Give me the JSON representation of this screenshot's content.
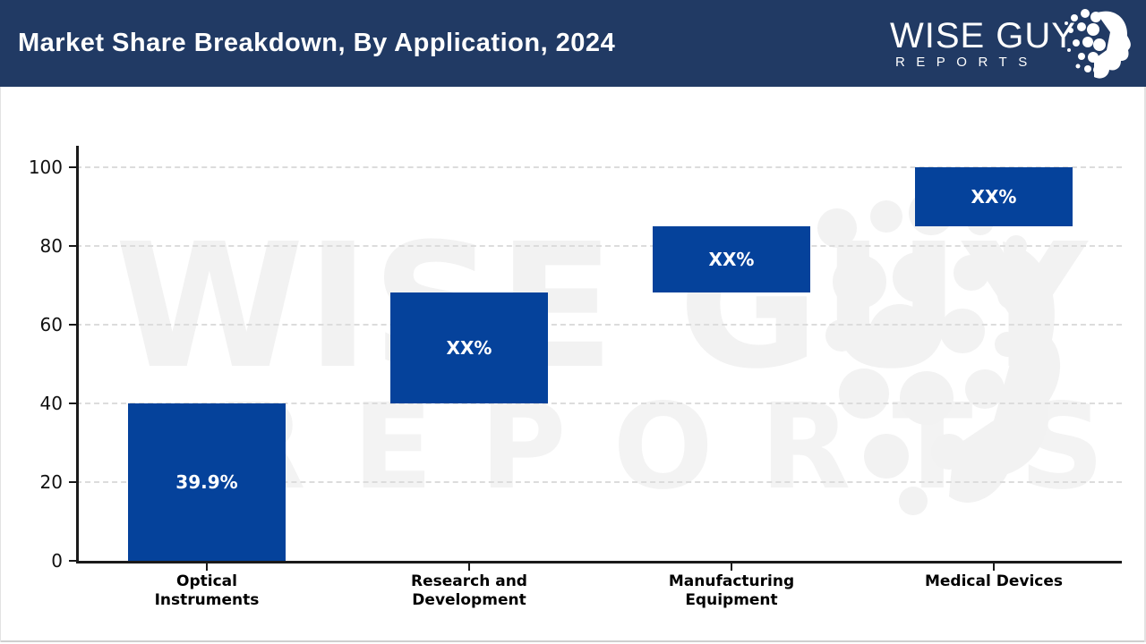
{
  "header": {
    "title": "Market Share Breakdown, By Application, 2024",
    "logo": {
      "line1": "WISE GUY",
      "line2": "REPORTS"
    }
  },
  "watermark": {
    "line1": "WISE GUY",
    "line2": "REPORTS"
  },
  "chart_data": {
    "type": "bar",
    "subtype": "waterfall",
    "title": "Market Share Breakdown, By Application, 2024",
    "xlabel": "",
    "ylabel": "",
    "ylim": [
      0,
      100
    ],
    "yticks": [
      0,
      20,
      40,
      60,
      80,
      100
    ],
    "grid": "horizontal-dashed",
    "legend": "none",
    "bar_color": "#05429B",
    "bar_label_color": "#ffffff",
    "categories": [
      "Optical\nInstruments",
      "Research and\nDevelopment",
      "Manufacturing\nEquipment",
      "Medical Devices"
    ],
    "segments": [
      {
        "category": "Optical Instruments",
        "start": 0,
        "end": 39.9,
        "label": "39.9%"
      },
      {
        "category": "Research and Development",
        "start": 39.9,
        "end": 68.0,
        "label": "XX%"
      },
      {
        "category": "Manufacturing Equipment",
        "start": 68.0,
        "end": 84.8,
        "label": "XX%"
      },
      {
        "category": "Medical Devices",
        "start": 84.8,
        "end": 100,
        "label": "XX%"
      }
    ]
  }
}
